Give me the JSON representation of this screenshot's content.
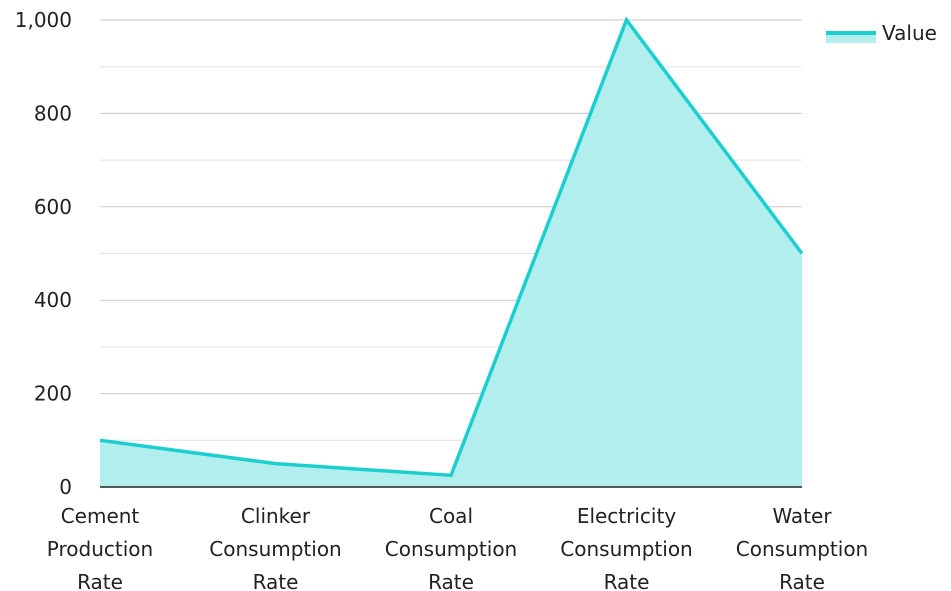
{
  "chart_data": {
    "type": "area",
    "title": "",
    "xlabel": "",
    "ylabel": "",
    "categories": [
      [
        "Cement",
        "Production",
        "Rate"
      ],
      [
        "Clinker",
        "Consumption",
        "Rate"
      ],
      [
        "Coal",
        "Consumption",
        "Rate"
      ],
      [
        "Electricity",
        "Consumption",
        "Rate"
      ],
      [
        "Water",
        "Consumption",
        "Rate"
      ]
    ],
    "series": [
      {
        "name": "Value",
        "values": [
          100,
          50,
          25,
          1000,
          500
        ],
        "color": "#1ccfcf",
        "fill": "#b2eeee"
      }
    ],
    "ylim": [
      0,
      1000
    ],
    "yticks": [
      0,
      200,
      400,
      600,
      800,
      1000
    ],
    "ytick_labels": [
      "0",
      "200",
      "400",
      "600",
      "800",
      "1,000"
    ],
    "grid": true,
    "legend": "top-right",
    "colors": {
      "line": "#1ccfcf",
      "area": "#b2eeee",
      "grid": "#e3e3e3",
      "grid_major": "#c9c9c9",
      "axis": "#222222"
    }
  }
}
